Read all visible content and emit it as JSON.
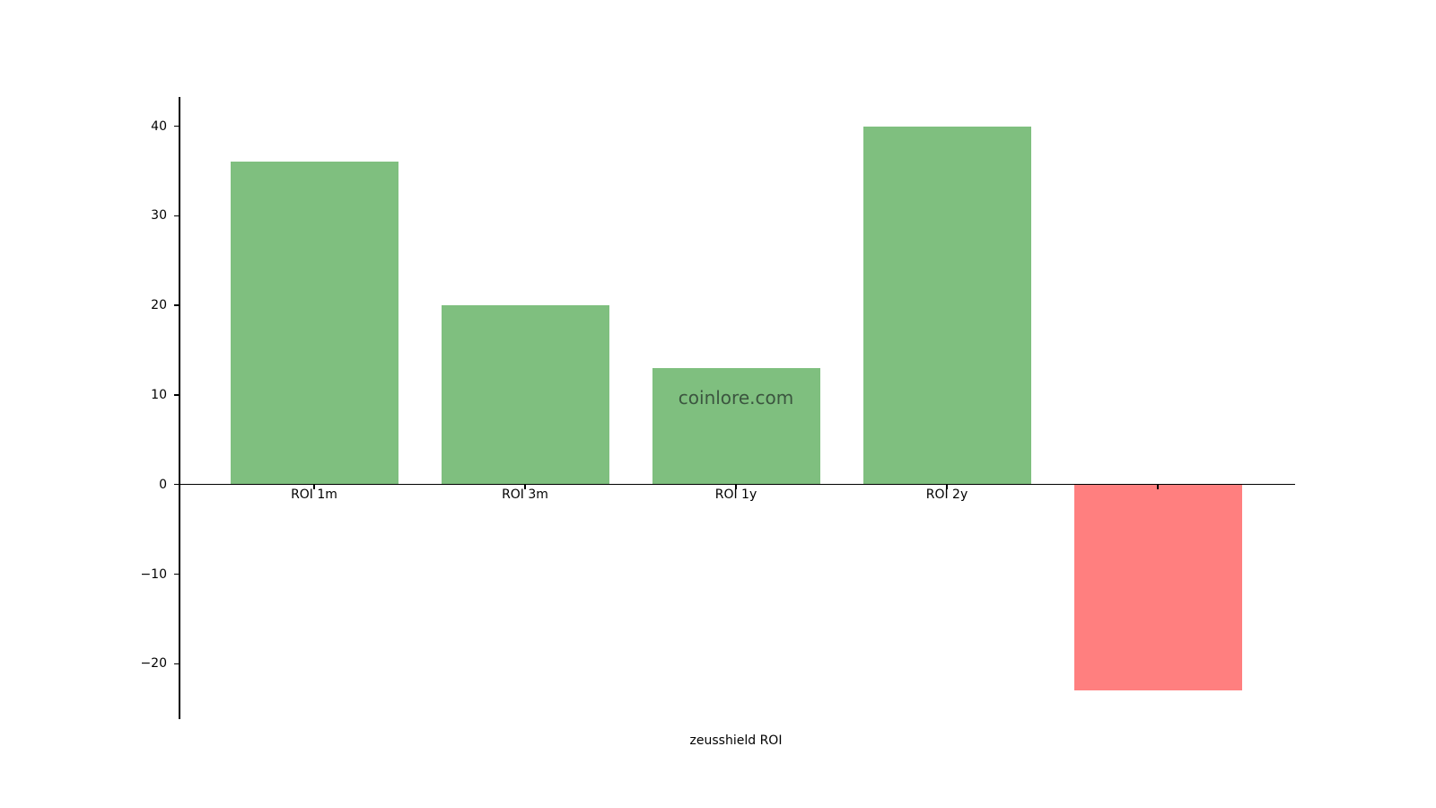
{
  "watermark": {
    "text": "coinlore.com",
    "color": "#3b553f"
  },
  "chart_data": {
    "type": "bar",
    "categories": [
      "ROI 1m",
      "ROI 3m",
      "ROI 1y",
      "ROI 2y",
      ""
    ],
    "values": [
      36,
      20,
      13,
      40,
      -23
    ],
    "bar_colors": [
      "#7fbf7f",
      "#7fbf7f",
      "#7fbf7f",
      "#7fbf7f",
      "#ff7f7f"
    ],
    "positive_color": "#7fbf7f",
    "negative_color": "#ff7f7f",
    "title": "",
    "xlabel": "zeusshield ROI",
    "ylabel": "",
    "yticks": [
      40,
      30,
      20,
      10,
      0,
      -10,
      -20
    ],
    "ylim": [
      -26.2,
      43.3
    ],
    "grid": false,
    "legend_position": "none",
    "axis_color": "#000000",
    "text_color": "#000000"
  }
}
